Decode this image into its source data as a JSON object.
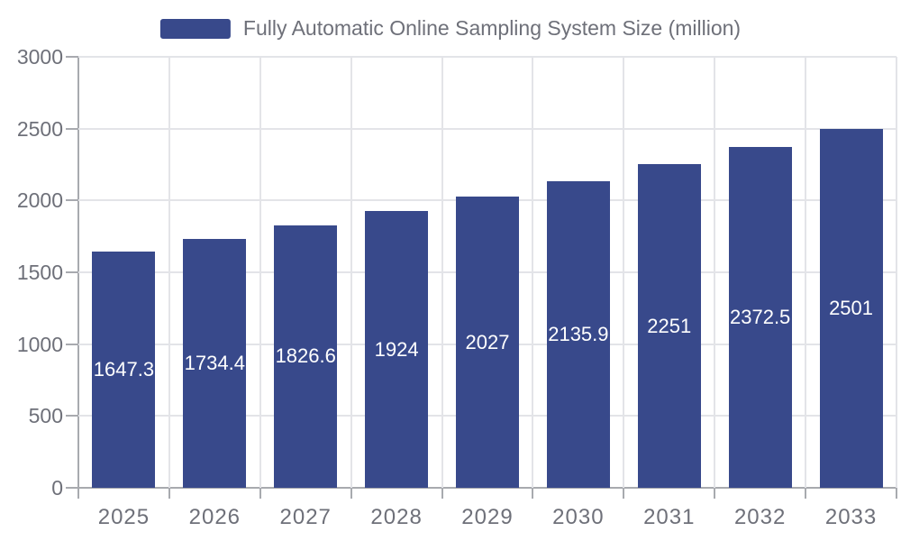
{
  "chart_data": {
    "type": "bar",
    "title": "Fully Automatic Online Sampling System Size (million)",
    "legend": {
      "position": "top",
      "entries": [
        "Fully Automatic Online Sampling System Size (million)"
      ]
    },
    "categories": [
      "2025",
      "2026",
      "2027",
      "2028",
      "2029",
      "2030",
      "2031",
      "2032",
      "2033"
    ],
    "series": [
      {
        "name": "Fully Automatic Online Sampling System Size (million)",
        "values": [
          1647.3,
          1734.4,
          1826.6,
          1924,
          2027,
          2135.9,
          2251,
          2372.5,
          2501
        ]
      }
    ],
    "xlabel": "",
    "ylabel": "",
    "ylim": [
      0,
      3000
    ],
    "yticks": [
      0,
      500,
      1000,
      1500,
      2000,
      2500,
      3000
    ],
    "grid": true,
    "value_label_position": "inside-center",
    "colors": {
      "bar": "#38498B",
      "grid_light": "#E3E4E8",
      "axis": "#A8AAAF",
      "axis_text": "#6E7079",
      "value_label": "#FFFFFF",
      "background": "#FFFFFF"
    }
  }
}
